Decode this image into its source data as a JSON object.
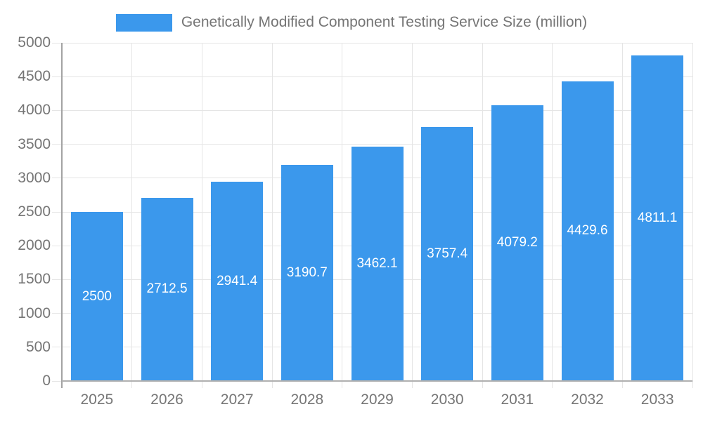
{
  "legend": {
    "label": "Genetically Modified Component Testing Service Size (million)"
  },
  "chart_data": {
    "type": "bar",
    "title": "Genetically Modified Component Testing Service Size (million)",
    "categories": [
      "2025",
      "2026",
      "2027",
      "2028",
      "2029",
      "2030",
      "2031",
      "2032",
      "2033"
    ],
    "values": [
      2500,
      2712.5,
      2941.4,
      3190.7,
      3462.1,
      3757.4,
      4079.2,
      4429.6,
      4811.1
    ],
    "xlabel": "",
    "ylabel": "",
    "ylim": [
      0,
      5000
    ],
    "ytick_step": 500,
    "yticks": [
      0,
      500,
      1000,
      1500,
      2000,
      2500,
      3000,
      3500,
      4000,
      4500,
      5000
    ],
    "grid": true,
    "legend_position": "top",
    "bar_labels_inside": true,
    "colors": {
      "bar": "#3B98EC",
      "bar_label": "#FFFFFF",
      "axis_text": "#757575",
      "grid_line": "#E5E5E5",
      "baseline": "#B0B0B0",
      "axis_line": "#A3A3A3",
      "background": "#FFFFFF"
    }
  }
}
